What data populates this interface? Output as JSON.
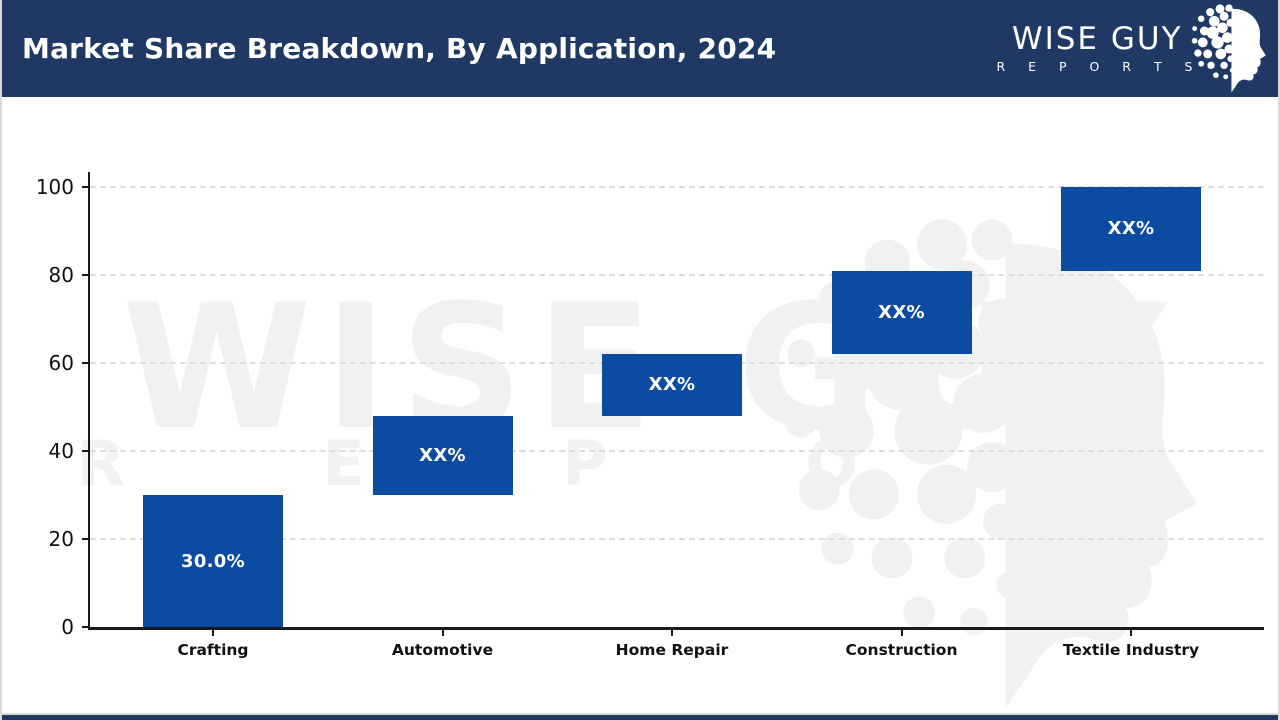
{
  "header": {
    "title": "Market Share Breakdown, By Application, 2024",
    "logo": {
      "name": "WISE GUY",
      "subtext": "R E P O R T S"
    }
  },
  "watermark": {
    "line1": "WISE GUY",
    "line2": "R E P O R T S"
  },
  "colors": {
    "header_navy": "#1f3864",
    "bar_blue": "#0c4ba2",
    "gridline_gray": "#dcdcdc",
    "axis_black": "#1a1a1a",
    "watermark_gray": "#f1f1f3",
    "footer_navy": "#1f3864"
  },
  "chart_data": {
    "type": "bar",
    "subtype": "waterfall",
    "title": "Market Share Breakdown, By Application, 2024",
    "categories": [
      "Crafting",
      "Automotive",
      "Home Repair",
      "Construction",
      "Textile Industry"
    ],
    "series": [
      {
        "name": "Market Share %",
        "values": [
          30,
          18,
          14,
          19,
          19
        ],
        "starts": [
          0,
          30,
          48,
          62,
          81
        ],
        "ends": [
          30,
          48,
          62,
          81,
          100
        ]
      }
    ],
    "bar_labels": [
      "30.0%",
      "XX%",
      "XX%",
      "XX%",
      "XX%"
    ],
    "xlabel": "",
    "ylabel": "",
    "yticks": [
      0,
      20,
      40,
      60,
      80,
      100
    ],
    "ylim": [
      0,
      100
    ],
    "grid": "horizontal-dashed",
    "legend": "none"
  }
}
